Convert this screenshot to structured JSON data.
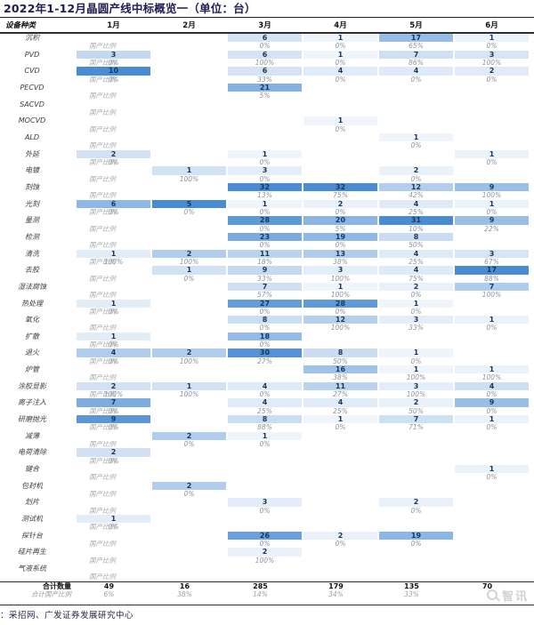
{
  "title": "2022年1-12月晶圆产线中标概览一（单位：台）",
  "footer": {
    "source": "：采招网、广发证券发展研究中心"
  },
  "watermark": {
    "text": "智讯",
    "icon": "magnifier-icon"
  },
  "colors": {
    "heat_max": "#4a8cd3",
    "heat_min": "#ffffff",
    "value_text": "#17375e",
    "ratio_text": "#8f949c",
    "title_text": "#1c1c52"
  },
  "chart_data": {
    "type": "heatmap",
    "unit": "台",
    "device_col_header": "设备种类",
    "months": [
      "1月",
      "2月",
      "3月",
      "4月",
      "5月",
      "6月"
    ],
    "ratio_row_label": "国产比例",
    "heat_scale": "per-column, white to blue at column max",
    "rows": [
      {
        "name": "沉积",
        "values": [
          null,
          null,
          6,
          1,
          17,
          1
        ],
        "ratios": [
          "",
          "",
          "0%",
          "0%",
          "65%",
          "0%"
        ]
      },
      {
        "name": "PVD",
        "values": [
          3,
          null,
          6,
          1,
          7,
          3
        ],
        "ratios": [
          "0%",
          "",
          "100%",
          "0%",
          "86%",
          "100%"
        ]
      },
      {
        "name": "CVD",
        "values": [
          10,
          null,
          6,
          4,
          4,
          2
        ],
        "ratios": [
          "0%",
          "",
          "33%",
          "0%",
          "0%",
          "0%"
        ]
      },
      {
        "name": "PECVD",
        "values": [
          null,
          null,
          21,
          null,
          null,
          null
        ],
        "ratios": [
          "",
          "",
          "5%",
          "",
          "",
          ""
        ]
      },
      {
        "name": "SACVD",
        "values": [
          null,
          null,
          null,
          null,
          null,
          null
        ],
        "ratios": [
          "",
          "",
          "",
          "",
          "",
          ""
        ]
      },
      {
        "name": "MOCVD",
        "values": [
          null,
          null,
          null,
          1,
          null,
          null
        ],
        "ratios": [
          "",
          "",
          "",
          "0%",
          "",
          ""
        ]
      },
      {
        "name": "ALD",
        "values": [
          null,
          null,
          null,
          null,
          1,
          null
        ],
        "ratios": [
          "",
          "",
          "",
          "",
          "0%",
          ""
        ]
      },
      {
        "name": "外延",
        "values": [
          2,
          null,
          1,
          null,
          null,
          1
        ],
        "ratios": [
          "0%",
          "",
          "0%",
          "",
          "",
          "0%"
        ]
      },
      {
        "name": "电镀",
        "values": [
          null,
          1,
          3,
          null,
          2,
          null
        ],
        "ratios": [
          "",
          "100%",
          "0%",
          "",
          "0%",
          ""
        ]
      },
      {
        "name": "刻蚀",
        "values": [
          null,
          null,
          32,
          32,
          12,
          9
        ],
        "ratios": [
          "",
          "",
          "13%",
          "75%",
          "42%",
          "100%"
        ]
      },
      {
        "name": "光刻",
        "values": [
          6,
          5,
          1,
          2,
          4,
          1
        ],
        "ratios": [
          "0%",
          "0%",
          "0%",
          "0%",
          "25%",
          "0%"
        ]
      },
      {
        "name": "量测",
        "values": [
          null,
          null,
          28,
          20,
          31,
          9
        ],
        "ratios": [
          "",
          "",
          "0%",
          "5%",
          "10%",
          "22%"
        ]
      },
      {
        "name": "检测",
        "values": [
          null,
          null,
          23,
          19,
          8,
          null
        ],
        "ratios": [
          "",
          "",
          "0%",
          "0%",
          "50%",
          ""
        ]
      },
      {
        "name": "清洗",
        "values": [
          1,
          2,
          11,
          13,
          4,
          3
        ],
        "ratios": [
          "100%",
          "100%",
          "18%",
          "38%",
          "25%",
          "67%"
        ]
      },
      {
        "name": "去胶",
        "values": [
          null,
          1,
          9,
          3,
          4,
          17
        ],
        "ratios": [
          "",
          "0%",
          "33%",
          "100%",
          "75%",
          "88%"
        ]
      },
      {
        "name": "湿法腐蚀",
        "values": [
          null,
          null,
          7,
          1,
          2,
          7
        ],
        "ratios": [
          "",
          "",
          "57%",
          "100%",
          "0%",
          "100%"
        ]
      },
      {
        "name": "热处理",
        "values": [
          1,
          null,
          27,
          28,
          1,
          null
        ],
        "ratios": [
          "0%",
          "",
          "0%",
          "0%",
          "0%",
          ""
        ]
      },
      {
        "name": "氧化",
        "values": [
          null,
          null,
          8,
          12,
          3,
          1
        ],
        "ratios": [
          "",
          "",
          "0%",
          "100%",
          "33%",
          "0%"
        ]
      },
      {
        "name": "扩散",
        "values": [
          1,
          null,
          18,
          null,
          null,
          null
        ],
        "ratios": [
          "0%",
          "",
          "0%",
          "",
          "",
          ""
        ]
      },
      {
        "name": "退火",
        "values": [
          4,
          2,
          30,
          8,
          1,
          null
        ],
        "ratios": [
          "0%",
          "100%",
          "27%",
          "50%",
          "0%",
          ""
        ]
      },
      {
        "name": "炉管",
        "values": [
          null,
          null,
          null,
          16,
          1,
          1
        ],
        "ratios": [
          "",
          "",
          "",
          "38%",
          "100%",
          "100%"
        ]
      },
      {
        "name": "涂胶显影",
        "values": [
          2,
          1,
          4,
          11,
          3,
          4
        ],
        "ratios": [
          "100%",
          "100%",
          "0%",
          "27%",
          "100%",
          "0%"
        ]
      },
      {
        "name": "离子注入",
        "values": [
          7,
          null,
          4,
          4,
          2,
          9
        ],
        "ratios": [
          "0%",
          "",
          "25%",
          "25%",
          "50%",
          "0%"
        ]
      },
      {
        "name": "研磨抛光",
        "values": [
          9,
          null,
          8,
          1,
          7,
          1
        ],
        "ratios": [
          "0%",
          "",
          "88%",
          "0%",
          "71%",
          "0%"
        ]
      },
      {
        "name": "减薄",
        "values": [
          null,
          2,
          1,
          null,
          null,
          null
        ],
        "ratios": [
          "",
          "0%",
          "0%",
          "",
          "",
          ""
        ]
      },
      {
        "name": "电荷清除",
        "values": [
          2,
          null,
          null,
          null,
          null,
          null
        ],
        "ratios": [
          "0%",
          "",
          "",
          "",
          "",
          ""
        ]
      },
      {
        "name": "键合",
        "values": [
          null,
          null,
          null,
          null,
          null,
          1
        ],
        "ratios": [
          "",
          "",
          "",
          "",
          "",
          "0%"
        ]
      },
      {
        "name": "包封机",
        "values": [
          null,
          2,
          null,
          null,
          null,
          null
        ],
        "ratios": [
          "",
          "0%",
          "",
          "",
          "",
          ""
        ]
      },
      {
        "name": "划片",
        "values": [
          null,
          null,
          3,
          null,
          2,
          null
        ],
        "ratios": [
          "",
          "",
          "0%",
          "",
          "0%",
          ""
        ]
      },
      {
        "name": "测试机",
        "values": [
          1,
          null,
          null,
          null,
          null,
          null
        ],
        "ratios": [
          "0%",
          "",
          "",
          "",
          "",
          ""
        ]
      },
      {
        "name": "探针台",
        "values": [
          null,
          null,
          26,
          2,
          19,
          null
        ],
        "ratios": [
          "",
          "",
          "0%",
          "0%",
          "0%",
          ""
        ]
      },
      {
        "name": "硅片再生",
        "values": [
          null,
          null,
          2,
          null,
          null,
          null
        ],
        "ratios": [
          "",
          "",
          "100%",
          "",
          "",
          ""
        ]
      },
      {
        "name": "气液系统",
        "values": [
          null,
          null,
          null,
          null,
          null,
          null
        ],
        "ratios": [
          "",
          "",
          "",
          "",
          "",
          ""
        ]
      }
    ],
    "totals": {
      "label": "合计数量",
      "values": [
        49,
        16,
        285,
        179,
        135,
        70
      ],
      "ratio_label": "合计国产比例",
      "ratios": [
        "6%",
        "38%",
        "14%",
        "34%",
        "33%",
        ""
      ]
    }
  }
}
